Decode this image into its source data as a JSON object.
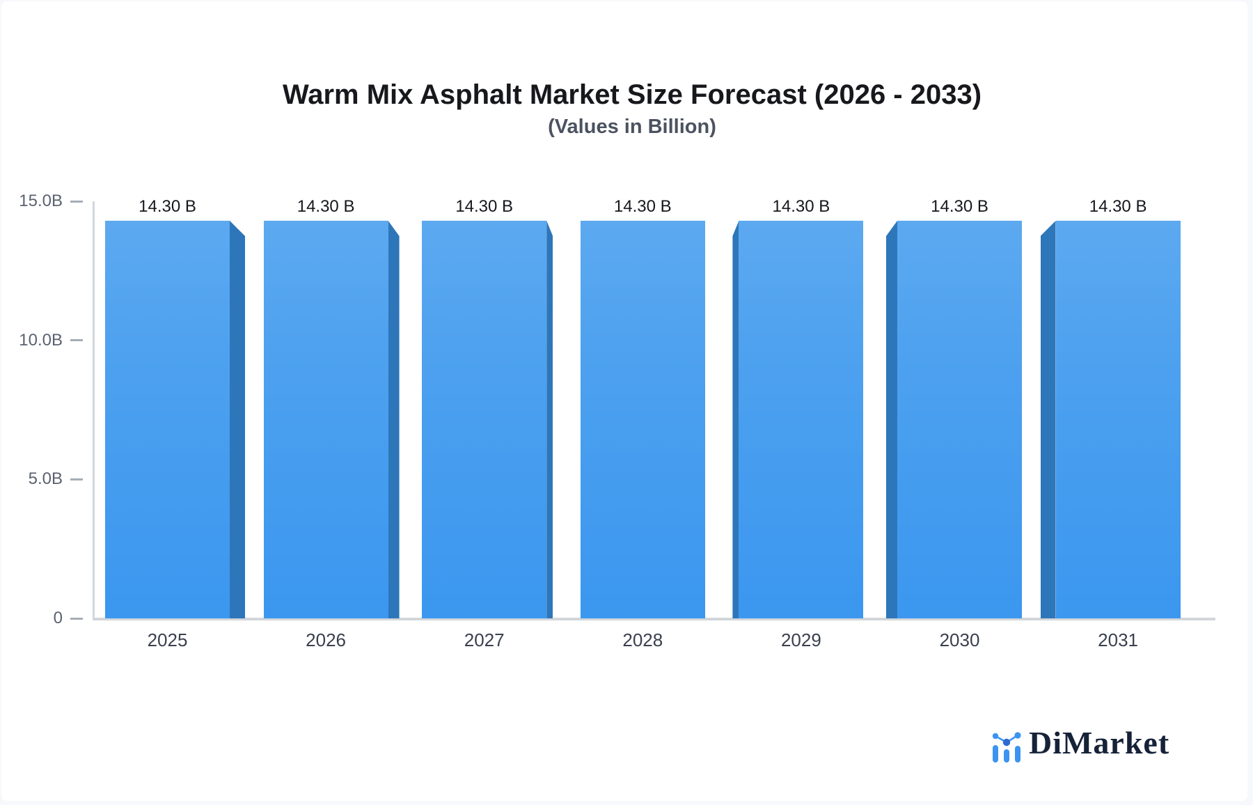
{
  "header": {
    "title": "Warm Mix Asphalt Market Size Forecast (2026 - 2033)",
    "subtitle": "(Values in Billion)"
  },
  "chart_data": {
    "type": "bar",
    "title": "Warm Mix Asphalt Market Size Forecast (2026 - 2033)",
    "subtitle": "(Values in Billion)",
    "unit": "Billion",
    "categories": [
      "2025",
      "2026",
      "2027",
      "2028",
      "2029",
      "2030",
      "2031"
    ],
    "values": [
      14.3,
      14.3,
      14.3,
      14.3,
      14.3,
      14.3,
      14.3
    ],
    "data_labels": [
      "14.30 B",
      "14.30 B",
      "14.30 B",
      "14.30 B",
      "14.30 B",
      "14.30 B",
      "14.30 B"
    ],
    "ylim": [
      0,
      15
    ],
    "yticks": {
      "values": [
        0,
        5,
        10,
        15
      ],
      "labels": [
        "0",
        "5.0B",
        "10.0B",
        "15.0B"
      ]
    },
    "grid": false,
    "legend": false,
    "bar_style": "3d-bevel"
  },
  "colors": {
    "page_bg": "#f7f8fb",
    "card_bg": "#ffffff",
    "bar_face_top": "#5ca9f0",
    "bar_face_bottom": "#3b97ef",
    "bar_side": "#2e76ba",
    "axis_line": "#d3d7dc",
    "tick": "#a6adb6",
    "y_label": "#5b6270",
    "x_label": "#39404d",
    "value_label": "#15171c",
    "title": "#17181c",
    "subtitle": "#4b5260",
    "logo_text": "#152238",
    "logo_blue": "#3d94f0",
    "logo_dot_dark": "#2d6bd0"
  },
  "branding": {
    "logo_text": "DiMarket",
    "logo_icon": "bar-line-chart-icon"
  }
}
